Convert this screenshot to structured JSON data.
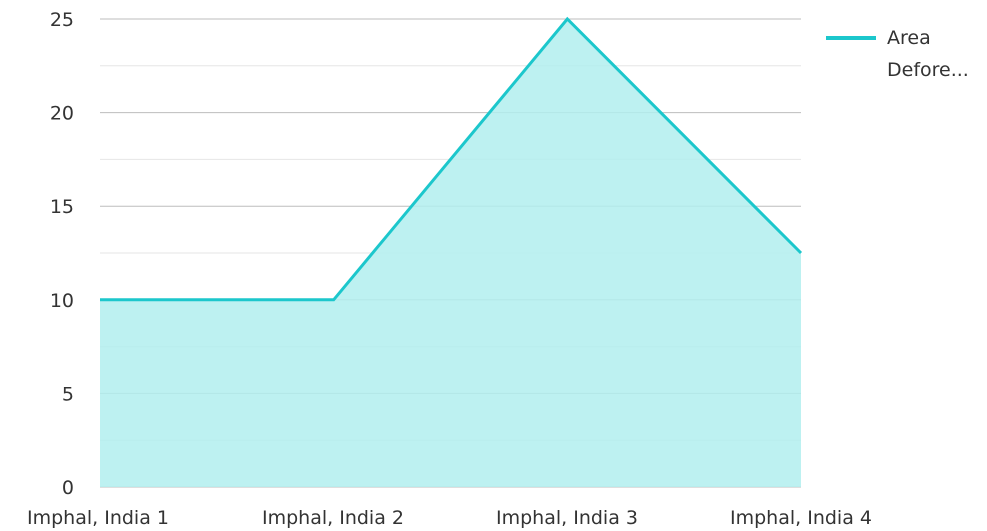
{
  "chart_data": {
    "type": "area",
    "categories": [
      "Imphal, India 1",
      "Imphal, India 2",
      "Imphal, India 3",
      "Imphal, India 4"
    ],
    "series": [
      {
        "name": "Area Defore...",
        "values": [
          10,
          10,
          25,
          12.5
        ]
      }
    ],
    "ylim": [
      0,
      25
    ],
    "yticks": [
      "0",
      "5",
      "10",
      "15",
      "20",
      "25"
    ],
    "grid": true,
    "legend": "top-right",
    "legend_lines": [
      "Area",
      "Defore..."
    ],
    "colors": {
      "line": "#1cc7cc",
      "fill": "#b2efee",
      "grid_major": "#bdbdbd",
      "grid_minor": "#e6e6e6"
    }
  }
}
